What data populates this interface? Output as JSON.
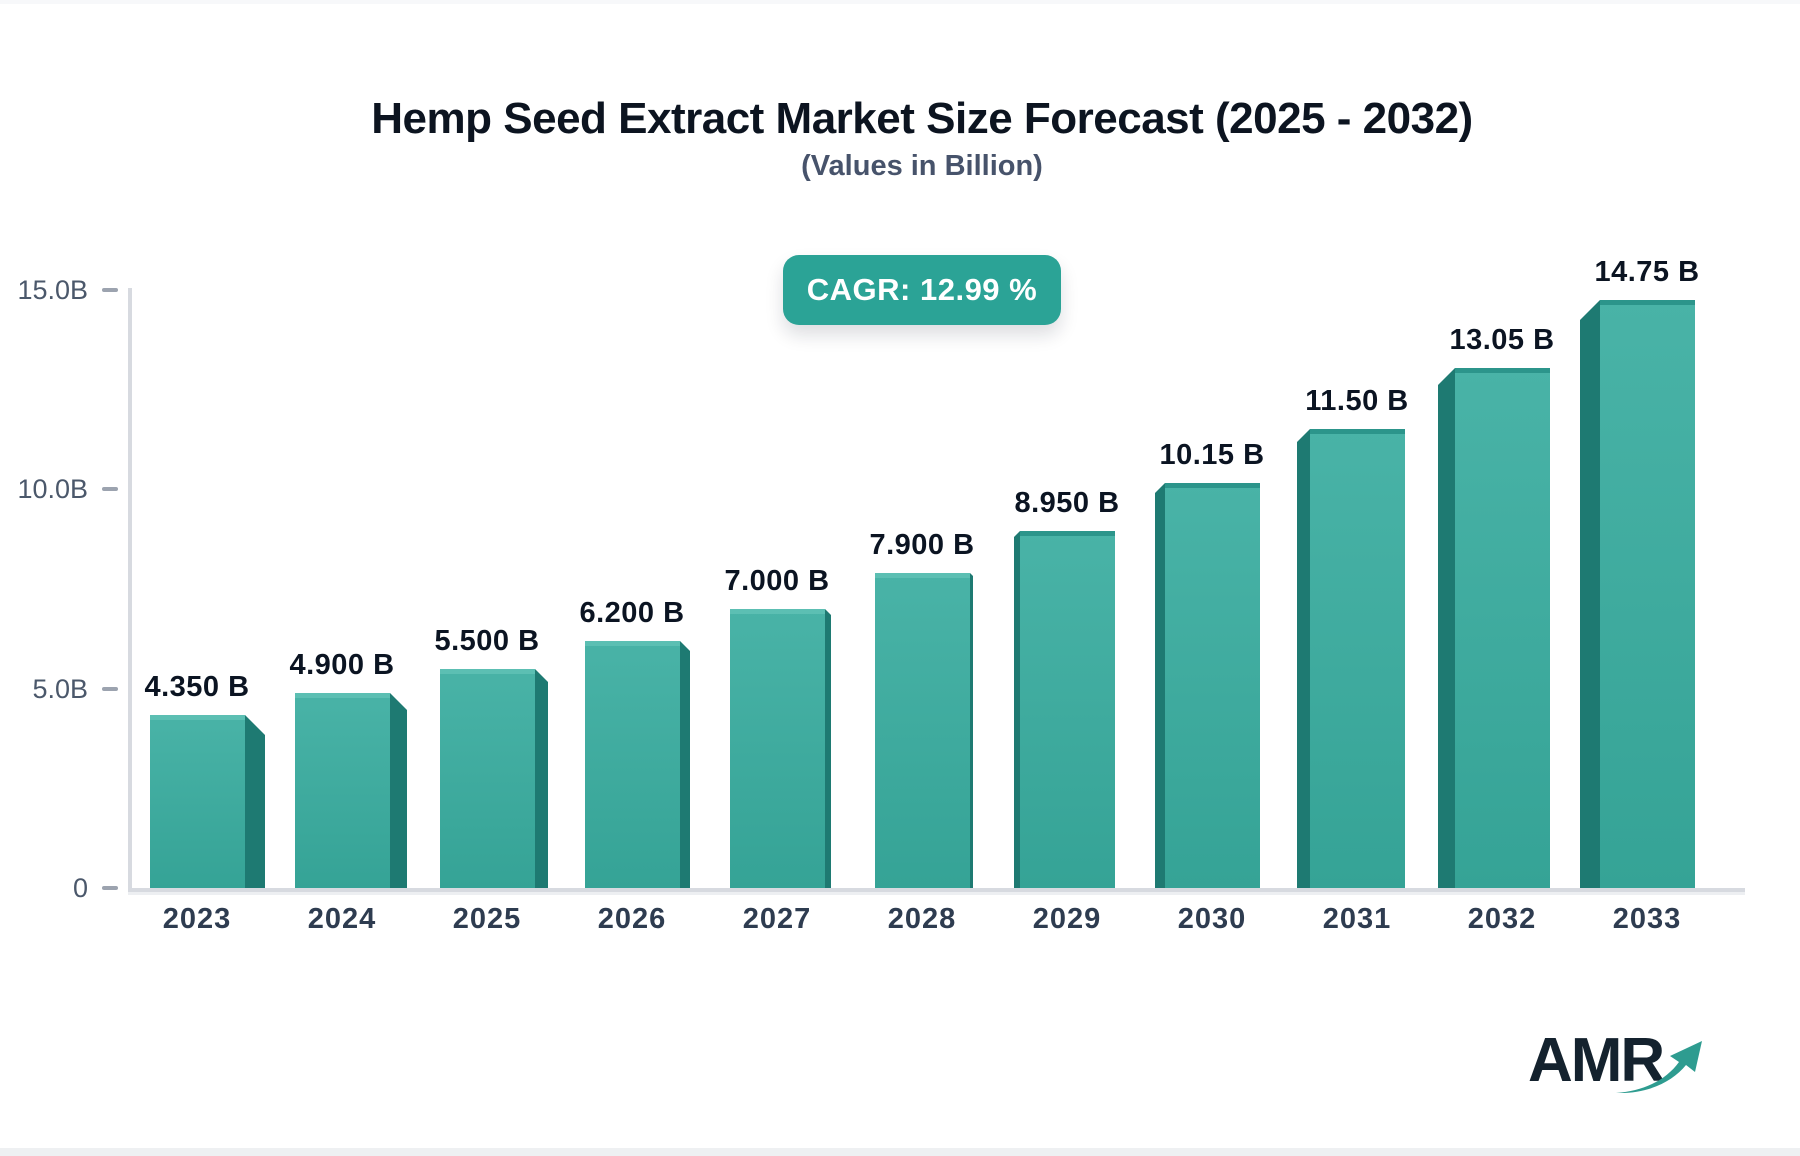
{
  "header": {
    "title": "Hemp Seed Extract Market Size Forecast (2025 - 2032)",
    "subtitle": "(Values in Billion)"
  },
  "badge": {
    "label": "CAGR: 12.99 %"
  },
  "logo": {
    "text": "AMR"
  },
  "chart_data": {
    "type": "bar",
    "title": "Hemp Seed Extract Market Size Forecast (2025 - 2032)",
    "subtitle": "(Values in Billion)",
    "cagr_label": "CAGR: 12.99 %",
    "unit": "B",
    "categories": [
      "2023",
      "2024",
      "2025",
      "2026",
      "2027",
      "2028",
      "2029",
      "2030",
      "2031",
      "2032",
      "2033"
    ],
    "values": [
      4.35,
      4.9,
      5.5,
      6.2,
      7.0,
      7.9,
      8.95,
      10.15,
      11.5,
      13.05,
      14.75
    ],
    "value_labels": [
      "4.350 B",
      "4.900 B",
      "5.500 B",
      "6.200 B",
      "7.000 B",
      "7.900 B",
      "8.950 B",
      "10.15 B",
      "11.50 B",
      "13.05 B",
      "14.75 B"
    ],
    "ylim": [
      0,
      15
    ],
    "y_ticks": [
      {
        "label": "15.0B",
        "value": 15
      },
      {
        "label": "10.0B",
        "value": 10
      },
      {
        "label": "5.0B",
        "value": 5
      },
      {
        "label": "0",
        "value": 0
      }
    ],
    "grid": false,
    "legend": null,
    "colors": {
      "front_top": "#49b3a7",
      "front_bottom": "#35a396",
      "side": "#1e7a72",
      "cap_light": "#5cbfb3",
      "cap_dark": "#2c958b",
      "accent": "#2ba396",
      "logo_arrow": "#2e9c90"
    }
  }
}
